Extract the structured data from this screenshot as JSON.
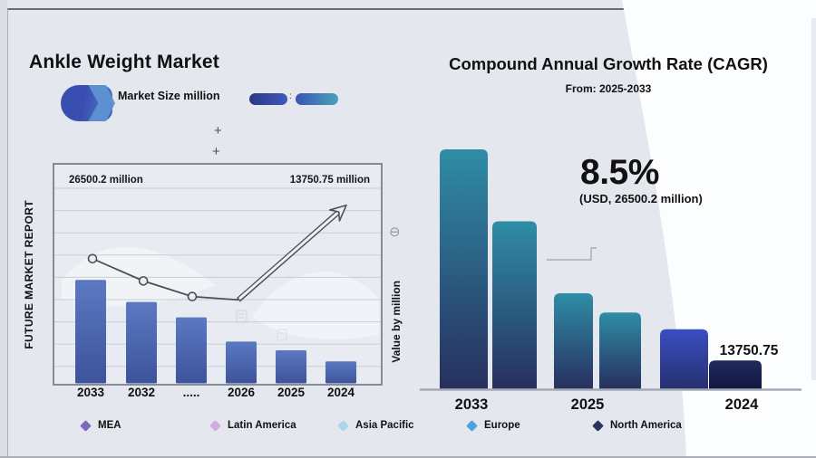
{
  "header": {
    "market_size_label": "Market Size million",
    "pill_separator": ":"
  },
  "decor": {
    "plus_top": "+",
    "plus_bottom": "+",
    "minus_circle": "⊖"
  },
  "legend": {
    "items": [
      {
        "label": "MEA",
        "color": "#7d68c0"
      },
      {
        "label": "Latin America",
        "color": "#d2abdc"
      },
      {
        "label": "Asia Pacific",
        "color": "#a9d6ec"
      },
      {
        "label": "Europe",
        "color": "#4aa3e0"
      },
      {
        "label": "North America",
        "color": "#29335f"
      }
    ]
  },
  "chart_data": [
    {
      "id": "market-size-by-year",
      "type": "bar+line",
      "title": "Ankle Weight Market",
      "annotation_left": "26500.2 million",
      "annotation_right": "13750.75 million",
      "ylabel_left": "FUTURE MARKET REPORT",
      "ylabel_right": "Value by million",
      "categories": [
        "2033",
        "2032",
        ".....",
        "2026",
        "2025",
        "2024"
      ],
      "bar_heights_pct": [
        47,
        37,
        30,
        19,
        15,
        10
      ],
      "line_points_pct": [
        [
          12.1,
          43
        ],
        [
          27.5,
          53
        ],
        [
          42.3,
          60
        ],
        [
          56.3,
          61.5
        ]
      ],
      "arrow_tip_pct": [
        89,
        19
      ],
      "grid": true,
      "bar_color_top": "#5b79c2",
      "bar_color_bottom": "#3d539b"
    },
    {
      "id": "cagr-projection",
      "type": "grouped-bar",
      "title": "Compound Annual Growth Rate (CAGR)",
      "subtitle": "From: 2025-2033",
      "cagr_value": "8.5%",
      "cagr_note": "(USD, 26500.2 million)",
      "value_label": "13750.75",
      "categories": [
        "2033",
        "2025",
        "2024"
      ],
      "series": [
        {
          "name": "series-a",
          "values_pct": [
            100,
            40,
            25
          ]
        },
        {
          "name": "series-b",
          "values_pct": [
            70,
            32,
            12
          ]
        }
      ],
      "bar_palettes": [
        "teal",
        "teal",
        "teal",
        "teal",
        "royal",
        "navy"
      ],
      "palettes": {
        "teal": [
          "#2f8da6",
          "#272f5e"
        ],
        "royal": [
          "#3a4ec2",
          "#26306e"
        ],
        "navy": [
          "#202a5c",
          "#111840"
        ]
      }
    }
  ]
}
